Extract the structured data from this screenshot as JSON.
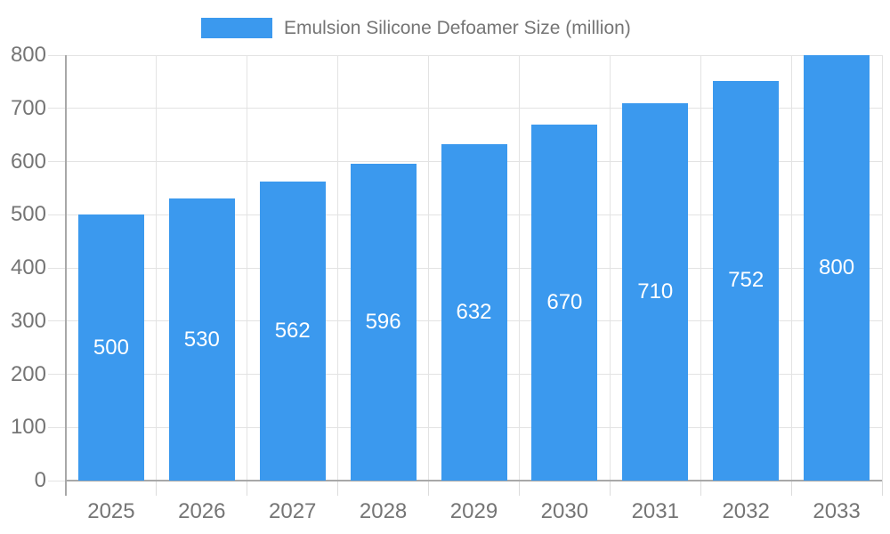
{
  "legend": {
    "label": "Emulsion Silicone Defoamer Size (million)"
  },
  "colors": {
    "bar": "#3B99EE",
    "grid": "#E3E3E3",
    "tick": "#DCDCDC",
    "axis": "#A8A8A8",
    "text": "#757575",
    "bar_label": "#FFFFFF",
    "background": "#FFFFFF"
  },
  "chart_data": {
    "type": "bar",
    "title": "Emulsion Silicone Defoamer Size (million)",
    "series_name": "Emulsion Silicone Defoamer Size (million)",
    "categories": [
      "2025",
      "2026",
      "2027",
      "2028",
      "2029",
      "2030",
      "2031",
      "2032",
      "2033"
    ],
    "values": [
      500,
      530,
      562,
      596,
      632,
      670,
      710,
      752,
      800
    ],
    "xlabel": "",
    "ylabel": "",
    "ylim": [
      0,
      800
    ],
    "yticks": [
      0,
      100,
      200,
      300,
      400,
      500,
      600,
      700,
      800
    ],
    "grid": true,
    "legend_position": "top",
    "bar_labels": "inside-center"
  }
}
